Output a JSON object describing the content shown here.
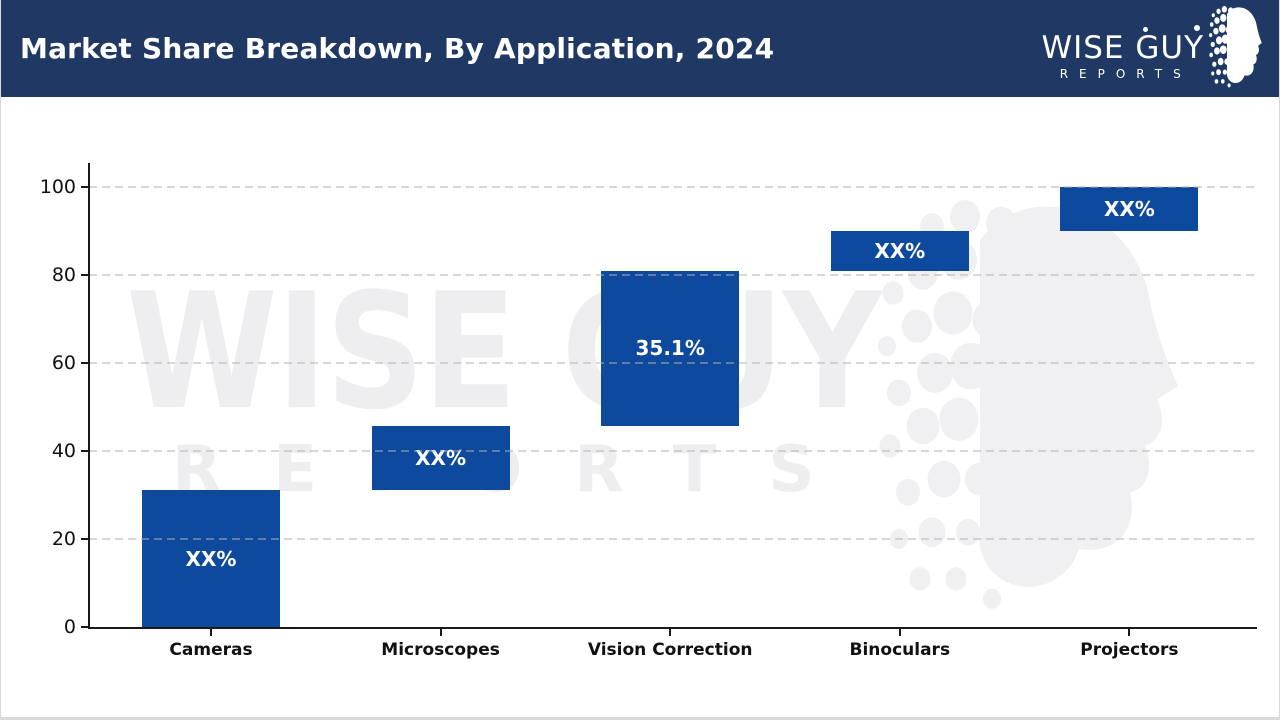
{
  "header": {
    "title": "Market Share Breakdown, By Application, 2024",
    "bg_color": "#1f3864",
    "logo": {
      "line1": "WISE GUY",
      "line2": "REPORTS"
    }
  },
  "watermark": {
    "line1": "WISE GUY",
    "line2": "REPORTS"
  },
  "chart_data": {
    "type": "bar",
    "subtype": "waterfall",
    "title": "Market Share Breakdown, By Application, 2024",
    "categories": [
      "Cameras",
      "Microscopes",
      "Vision Correction",
      "Binoculars",
      "Projectors"
    ],
    "bars": [
      {
        "category": "Cameras",
        "label": "XX%",
        "start": 0,
        "end": 31.0
      },
      {
        "category": "Microscopes",
        "label": "XX%",
        "start": 31.0,
        "end": 45.7
      },
      {
        "category": "Vision Correction",
        "label": "35.1%",
        "start": 45.7,
        "end": 80.8
      },
      {
        "category": "Binoculars",
        "label": "XX%",
        "start": 80.8,
        "end": 89.9
      },
      {
        "category": "Projectors",
        "label": "XX%",
        "start": 89.9,
        "end": 100
      }
    ],
    "only_labeled_value": {
      "category": "Vision Correction",
      "value_pct": 35.1
    },
    "y_ticks": [
      0,
      20,
      40,
      60,
      80,
      100
    ],
    "ylim": [
      0,
      105
    ],
    "xlabel": "",
    "ylabel": "",
    "bar_color": "#0d4a9e",
    "grid": "horizontal-dashed",
    "legend": false
  }
}
